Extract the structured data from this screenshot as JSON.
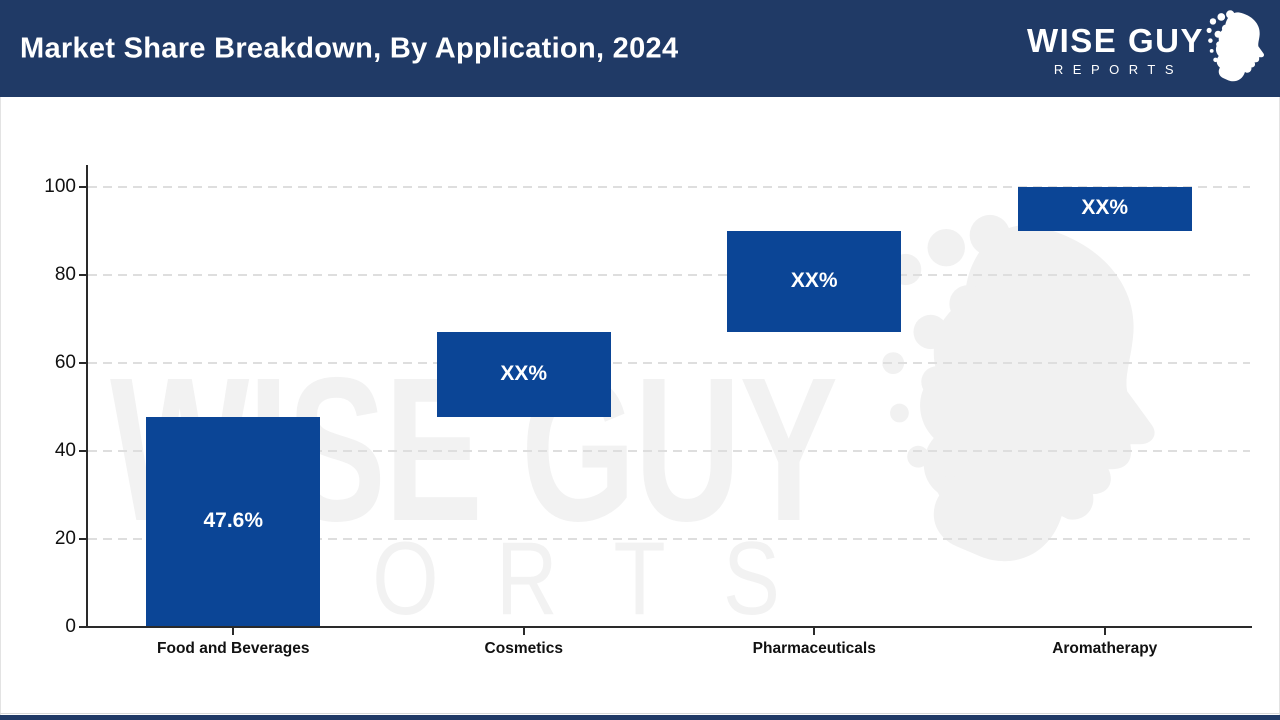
{
  "header": {
    "title": "Market Share Breakdown, By Application, 2024",
    "logo": {
      "line1": "WISE GUY",
      "line2": "REPORTS"
    }
  },
  "watermark": {
    "line1": "WISE GUY",
    "line2": "PORTS"
  },
  "colors": {
    "header_bg": "#203A66",
    "bar": "#0B4596",
    "axis": "#2A2A2A",
    "grid": "#DEDEDE",
    "tick_text": "#111111",
    "bar_label_text": "#FFFFFF",
    "watermark": "#F2F2F2",
    "footer_bar": "#203A66"
  },
  "chart_data": {
    "type": "bar",
    "subtype": "waterfall",
    "title": "Market Share Breakdown, By Application, 2024",
    "categories": [
      "Food and Beverages",
      "Cosmetics",
      "Pharmaceuticals",
      "Aromatherapy"
    ],
    "segments": [
      {
        "category": "Food and Beverages",
        "start": 0,
        "end": 47.6,
        "label": "47.6%"
      },
      {
        "category": "Cosmetics",
        "start": 47.6,
        "end": 66.9,
        "label": "XX%"
      },
      {
        "category": "Pharmaceuticals",
        "start": 66.9,
        "end": 89.9,
        "label": "XX%"
      },
      {
        "category": "Aromatherapy",
        "start": 89.9,
        "end": 100,
        "label": "XX%"
      }
    ],
    "xlabel": "",
    "ylabel": "",
    "yticks": [
      0,
      20,
      40,
      60,
      80,
      100
    ],
    "ylim": [
      0,
      105
    ],
    "grid": "dashed-horizontal",
    "legend": "none",
    "bar_width_frac": 0.6
  }
}
